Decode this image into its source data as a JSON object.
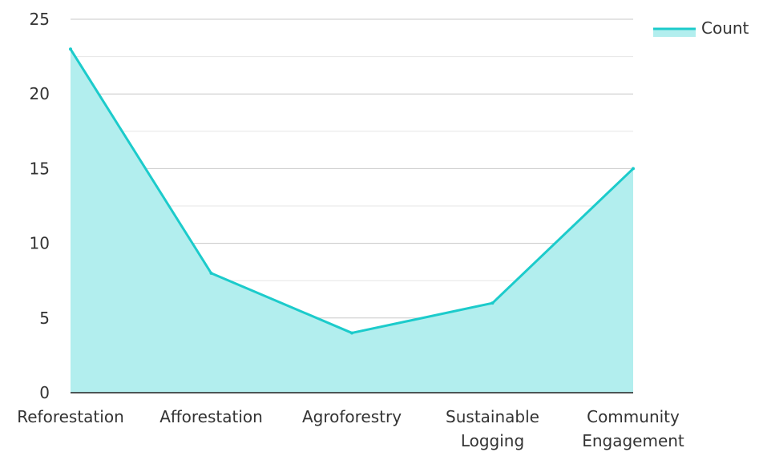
{
  "chart_data": {
    "type": "area",
    "categories": [
      [
        "Reforestation"
      ],
      [
        "Afforestation"
      ],
      [
        "Agroforestry"
      ],
      [
        "Sustainable",
        "Logging"
      ],
      [
        "Community",
        "Engagement"
      ]
    ],
    "series": [
      {
        "name": "Count",
        "values": [
          23,
          8,
          4,
          6,
          15
        ],
        "stroke": "#1ccbcb",
        "fill": "#b2eeee"
      }
    ],
    "y_ticks": [
      0,
      5,
      10,
      15,
      20,
      25
    ],
    "ylim": [
      0,
      25
    ],
    "grid": true,
    "legend_position": "top-right",
    "title": "",
    "xlabel": "",
    "ylabel": ""
  }
}
